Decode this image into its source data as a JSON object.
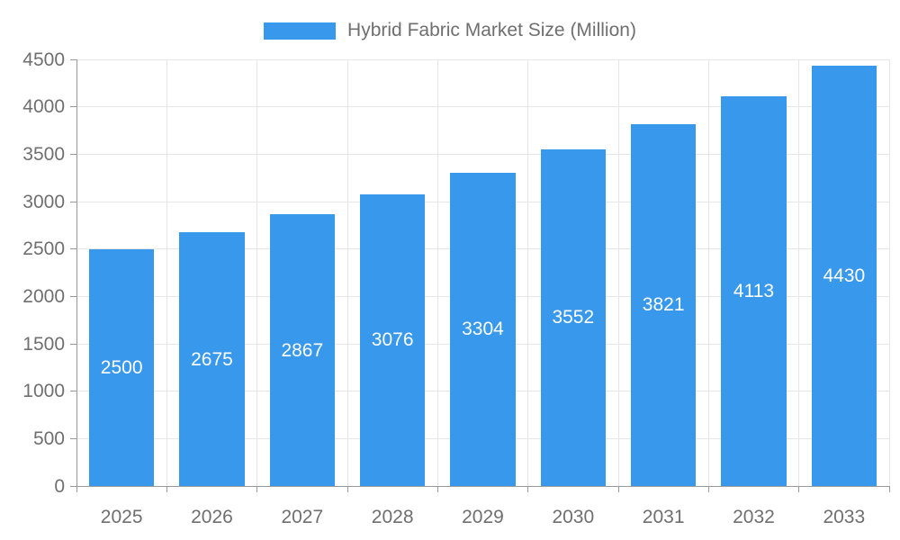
{
  "chart_data": {
    "type": "bar",
    "title": "Hybrid Fabric Market Size (Million)",
    "categories": [
      "2025",
      "2026",
      "2027",
      "2028",
      "2029",
      "2030",
      "2031",
      "2032",
      "2033"
    ],
    "values": [
      2500,
      2675,
      2867,
      3076,
      3304,
      3552,
      3821,
      4113,
      4430
    ],
    "y_ticks": [
      0,
      500,
      1000,
      1500,
      2000,
      2500,
      3000,
      3500,
      4000,
      4500
    ],
    "ylim": [
      0,
      4500
    ],
    "xlabel": "",
    "ylabel": "",
    "legend_position": "top-center",
    "grid": true,
    "bar_color": "#3898EC",
    "bar_label_color": "#FFFFFF",
    "axis_text_color": "#6F6F6F",
    "grid_color": "#E6E6E6",
    "axis_line_color": "#999999",
    "background_color": "#FFFFFF"
  }
}
